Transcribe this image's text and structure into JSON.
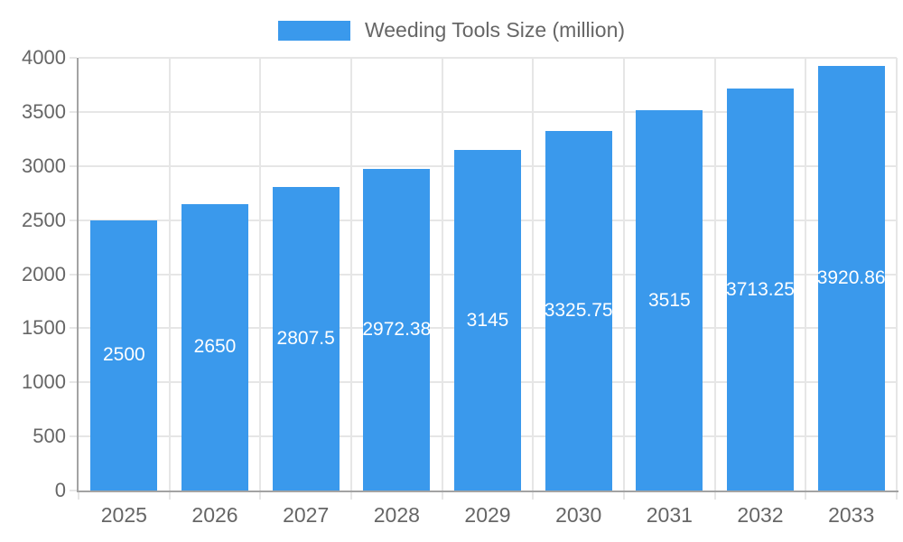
{
  "window": {
    "background": "#FFFFFF"
  },
  "legend": {
    "label": "Weeding Tools Size (million)"
  },
  "colors": {
    "bar": "#3A99EC",
    "grid": "#E6E6E6",
    "axis": "#A3A3A3",
    "tick_label": "#666666",
    "bar_label": "#FFFFFF",
    "background": "#FFFFFF"
  },
  "chart_data": {
    "type": "bar",
    "title": "",
    "legend_entries": [
      "Weeding Tools Size (million)"
    ],
    "legend_position": "top",
    "categories": [
      "2025",
      "2026",
      "2027",
      "2028",
      "2029",
      "2030",
      "2031",
      "2032",
      "2033"
    ],
    "values": [
      2500,
      2650,
      2807.5,
      2972.38,
      3145,
      3325.75,
      3515,
      3713.25,
      3920.86
    ],
    "value_labels": [
      "2500",
      "2650",
      "2807.5",
      "2972.38",
      "3145",
      "3325.75",
      "3515",
      "3713.25",
      "3920.86"
    ],
    "xlabel": "",
    "ylabel": "",
    "ylim": [
      0,
      4000
    ],
    "yticks": [
      0,
      500,
      1000,
      1500,
      2000,
      2500,
      3000,
      3500,
      4000
    ],
    "grid": true
  }
}
